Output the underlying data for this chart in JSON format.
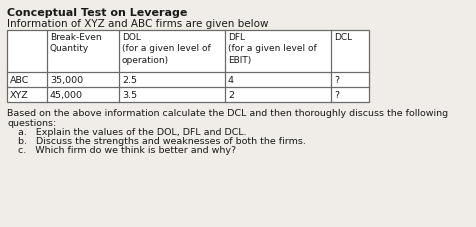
{
  "title": "Conceptual Test on Leverage",
  "subtitle": "Information of XYZ and ABC firms are given below",
  "col_headers": [
    "",
    "Break-Even\nQuantity",
    "DOL\n(for a given level of\noperation)",
    "DFL\n(for a given level of\nEBIT)",
    "DCL"
  ],
  "rows": [
    [
      "ABC",
      "35,000",
      "2.5",
      "4",
      "?"
    ],
    [
      "XYZ",
      "45,000",
      "3.5",
      "2",
      "?"
    ]
  ],
  "footer_line1": "Based on the above information calculate the DCL and then thoroughly discuss the following",
  "footer_line2": "questions:",
  "footer_a": "a.   Explain the values of the DOL, DFL and DCL.",
  "footer_b": "b.   Discuss the strengths and weaknesses of both the firms.",
  "footer_c": "c.   Which firm do we think is better and why?",
  "bg_color": "#f0ede8",
  "text_color": "#1a1a1a",
  "border_color": "#6a6a6a",
  "table_bg": "#ffffff"
}
